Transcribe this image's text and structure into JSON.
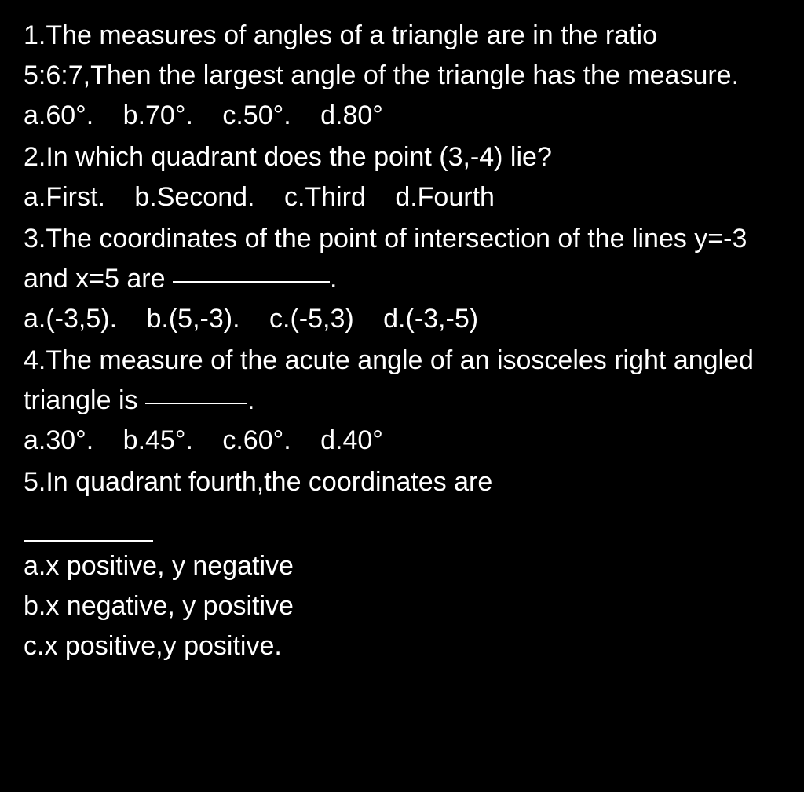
{
  "background_color": "#000000",
  "text_color": "#ffffff",
  "font_family": "Arial",
  "font_size_pt": 26,
  "questions": [
    {
      "number": "1",
      "text": "1.The measures of angles of a triangle are in the ratio 5:6:7,Then the largest angle of the triangle has the measure.",
      "options": {
        "a": "a.60°.",
        "b": "b.70°.",
        "c": "c.50°.",
        "d": "d.80°"
      },
      "layout": "horizontal"
    },
    {
      "number": "2",
      "text": "2.In which quadrant does the point (3,-4) lie?",
      "options": {
        "a": "a.First.",
        "b": "b.Second.",
        "c": "c.Third",
        "d": "d.Fourth"
      },
      "layout": "horizontal"
    },
    {
      "number": "3",
      "text_prefix": "3.The coordinates of the point of intersection of the lines y=-3 and x=5 are ",
      "text_suffix": ".",
      "options": {
        "a": "a.(-3,5).",
        "b": "b.(5,-3).",
        "c": "c.(-5,3)",
        "d": "d.(-3,-5)"
      },
      "layout": "horizontal",
      "has_blank": true
    },
    {
      "number": "4",
      "text_prefix": "4.The measure of the acute angle of an isosceles right angled triangle is ",
      "text_suffix": ".",
      "options": {
        "a": "a.30°.",
        "b": "b.45°.",
        "c": "c.60°.",
        "d": "d.40°"
      },
      "layout": "horizontal",
      "has_blank": true,
      "blank_short": true
    },
    {
      "number": "5",
      "text": "5.In quadrant fourth,the coordinates are",
      "options": {
        "a": "a.x positive, y negative",
        "b": "b.x negative, y positive",
        "c": "c.x positive,y positive."
      },
      "layout": "vertical",
      "standalone_blank": true
    }
  ]
}
